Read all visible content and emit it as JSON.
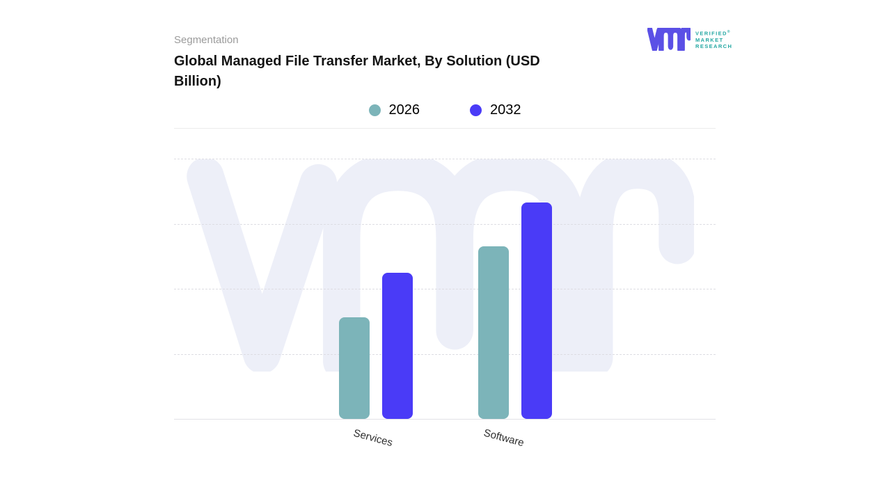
{
  "header": {
    "eyebrow": "Segmentation",
    "title": "Global Managed File Transfer Market, By Solution (USD Billion)"
  },
  "logo": {
    "name": "Verified Market Research",
    "lines": [
      "VERIFIED",
      "MARKET",
      "RESEARCH"
    ],
    "registered_mark": "®",
    "glyph_color": "#5b50e6",
    "text_color": "#25a8a3"
  },
  "legend": [
    {
      "label": "2026",
      "color": "#7cb4b9"
    },
    {
      "label": "2032",
      "color": "#4a3bf7"
    }
  ],
  "chart_data": {
    "type": "bar",
    "title": "Global Managed File Transfer Market, By Solution (USD Billion)",
    "categories": [
      "Services",
      "Software"
    ],
    "series": [
      {
        "name": "2026",
        "color": "#7cb4b9",
        "values": [
          39,
          66
        ]
      },
      {
        "name": "2032",
        "color": "#4a3bf7",
        "values": [
          56,
          83
        ]
      }
    ],
    "ylabel": "USD Billion",
    "ylim": [
      0,
      100
    ],
    "y_axis_labels_visible": false,
    "grid": "4 dashed horizontal gridlines, solid baseline",
    "legend_position": "top-center",
    "bar_corner_radius_px": 8,
    "layout": {
      "group_centers_pct": [
        37.3,
        63.0
      ],
      "label_centers_pct": [
        36.9,
        61.0
      ]
    }
  },
  "watermark": {
    "name": "vmr-watermark",
    "color": "#edeff8"
  }
}
